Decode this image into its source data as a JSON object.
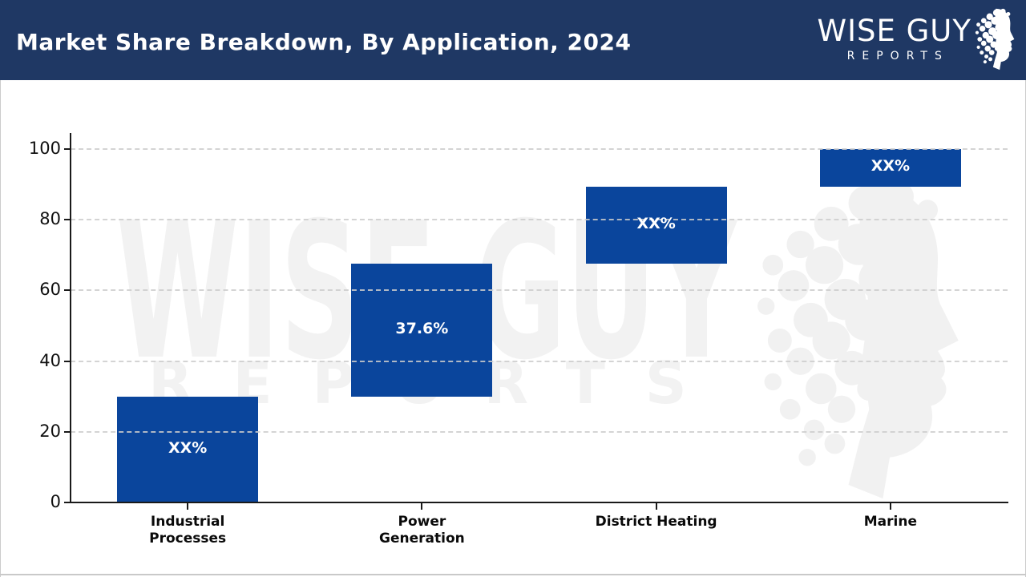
{
  "page": {
    "bg_color": "#ffffff",
    "border_color": "#c9c9c9"
  },
  "header": {
    "bg_color": "#1f3864",
    "title": "Market Share Breakdown, By Application, 2024",
    "logo": {
      "line1": "WISE GUY",
      "line2": "REPORTS"
    }
  },
  "watermark": {
    "line1": "WISE GUY",
    "line2": "REPORTS"
  },
  "chart_data": {
    "type": "bar",
    "subtype": "waterfall",
    "title": "Market Share Breakdown, By Application, 2024",
    "categories": [
      "Industrial Processes",
      "Power Generation",
      "District Heating",
      "Marine"
    ],
    "series": [
      {
        "name": "Market Share (%)",
        "starts": [
          0,
          30,
          67.6,
          89.4
        ],
        "ends": [
          30,
          67.6,
          89.4,
          100
        ],
        "values": [
          30,
          37.6,
          21.8,
          10.6
        ]
      }
    ],
    "bar_labels": [
      "XX%",
      "37.6%",
      "XX%",
      "XX%"
    ],
    "ylabel": "",
    "xlabel": "",
    "ylim": [
      0,
      100
    ],
    "yticks": [
      0,
      20,
      40,
      60,
      80,
      100
    ],
    "grid": "horizontal-dashed",
    "legend": "none",
    "bar_color": "#0a459c",
    "bar_label_color": "#ffffff",
    "axis_color": "#1a1a1a"
  }
}
